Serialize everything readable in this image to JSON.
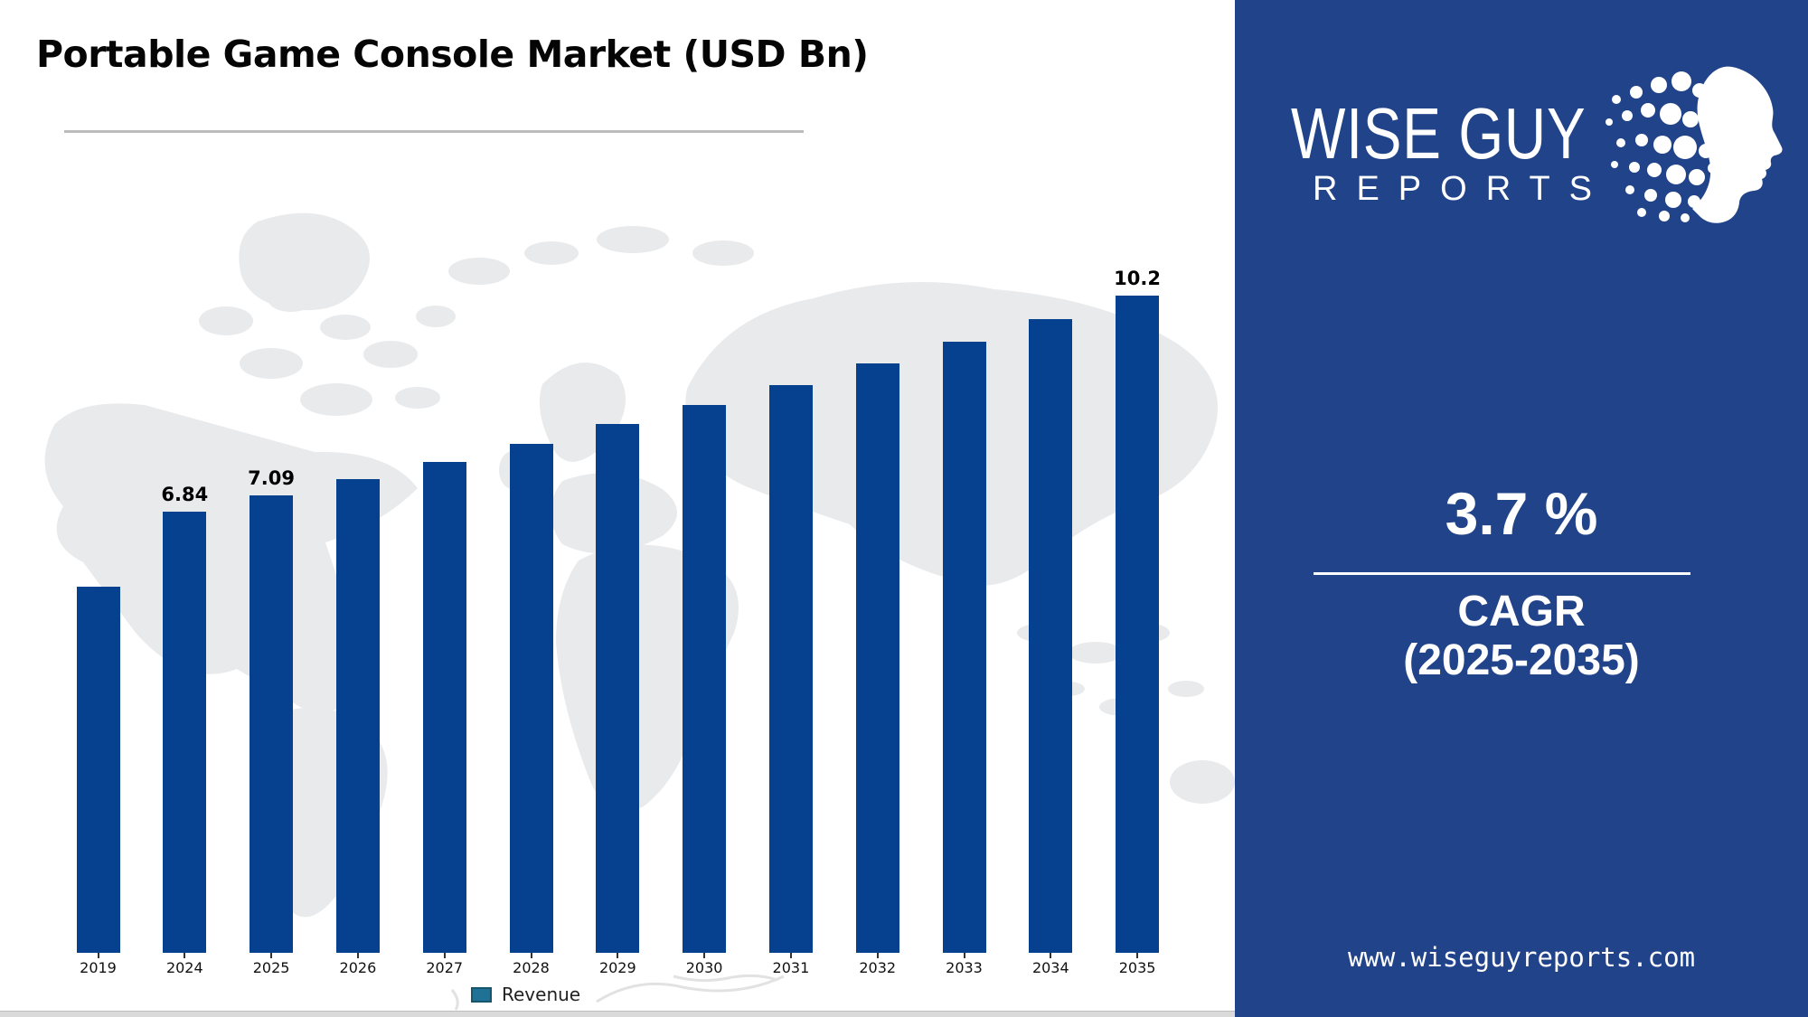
{
  "title": "Portable Game Console Market (USD Bn)",
  "chart_data": {
    "type": "bar",
    "categories": [
      "2019",
      "2024",
      "2025",
      "2026",
      "2027",
      "2028",
      "2029",
      "2030",
      "2031",
      "2032",
      "2033",
      "2034",
      "2035"
    ],
    "values": [
      5.68,
      6.84,
      7.09,
      7.35,
      7.62,
      7.9,
      8.2,
      8.5,
      8.81,
      9.14,
      9.48,
      9.83,
      10.2
    ],
    "bar_labels": [
      "",
      "6.84",
      "7.09",
      "",
      "",
      "",
      "",
      "",
      "",
      "",
      "",
      "",
      "10.2"
    ],
    "title": "Portable Game Console Market (USD Bn)",
    "xlabel": "",
    "ylabel": "",
    "ylim": [
      0,
      11
    ],
    "grid": false,
    "legend_position": "bottom",
    "series_name": "Revenue",
    "bar_color": "#05418f"
  },
  "legend": {
    "label": "Revenue",
    "swatch_color": "#1f7296"
  },
  "sidebar": {
    "background_color": "#21438a",
    "logo": {
      "line1": "WISE GUY",
      "line2": "REPORTS",
      "icon": "dotted-head-profile"
    },
    "cagr_value": "3.7 %",
    "cagr_line1": "CAGR",
    "cagr_line2": "(2025-2035)",
    "website": "www.wiseguyreports.com"
  }
}
